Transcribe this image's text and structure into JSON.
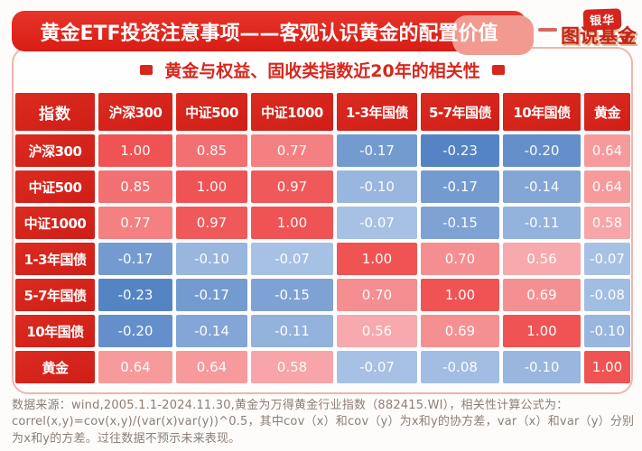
{
  "page": {
    "background": "#FEFCFB"
  },
  "header": {
    "title": "黄金ETF投资注意事项——客观认识黄金的配置价值",
    "logo": {
      "brand": "银华",
      "series": "图说基金",
      "check_icon": "✔"
    }
  },
  "subtitle": "黄金与权益、固收类指数近20年的相关性",
  "table": {
    "corner_label": "指数"
  },
  "chart_data": {
    "type": "heatmap",
    "title": "黄金与权益、固收类指数近20年的相关性",
    "x_categories": [
      "沪深300",
      "中证500",
      "中证1000",
      "1-3年国债",
      "5-7年国债",
      "10年国债",
      "黄金"
    ],
    "y_categories": [
      "沪深300",
      "中证500",
      "中证1000",
      "1-3年国债",
      "5-7年国债",
      "10年国债",
      "黄金"
    ],
    "matrix": [
      [
        1.0,
        0.85,
        0.77,
        -0.17,
        -0.23,
        -0.2,
        0.64
      ],
      [
        0.85,
        1.0,
        0.97,
        -0.1,
        -0.17,
        -0.14,
        0.64
      ],
      [
        0.77,
        0.97,
        1.0,
        -0.07,
        -0.15,
        -0.11,
        0.58
      ],
      [
        -0.17,
        -0.1,
        -0.07,
        1.0,
        0.7,
        0.56,
        -0.07
      ],
      [
        -0.23,
        -0.17,
        -0.15,
        0.7,
        1.0,
        0.69,
        -0.08
      ],
      [
        -0.2,
        -0.14,
        -0.11,
        0.56,
        0.69,
        1.0,
        -0.1
      ],
      [
        0.64,
        0.64,
        0.58,
        -0.07,
        -0.08,
        -0.1,
        1.0
      ]
    ],
    "value_range": [
      -1,
      1
    ],
    "decimals": 2,
    "legend_position": "none",
    "grid": false
  },
  "footer": {
    "text": "数据来源：wind,2005.1.1-2024.11.30,黄金为万得黄金行业指数（882415.WI），相关性计算公式为：correl(x,y)=cov(x,y)/(var(x)var(y))^0.5，其中cov（x）和cov（y）为x和y的协方差，var（x）和var（y）分别为x和y的方差。过往数据不预示未来表现。"
  },
  "theme": {
    "banner_red": "#DF2418",
    "header_cell_red": "#D4241D",
    "subtitle_red": "#D8261C",
    "card_border": "#F0B5AB",
    "footer_text_color": "#8C7E76",
    "colormap": {
      "positive_low": "#F9BFC3",
      "positive_high": "#F05353",
      "negative_low": "#CBDCF2",
      "negative_high": "#4B7CC0"
    }
  }
}
